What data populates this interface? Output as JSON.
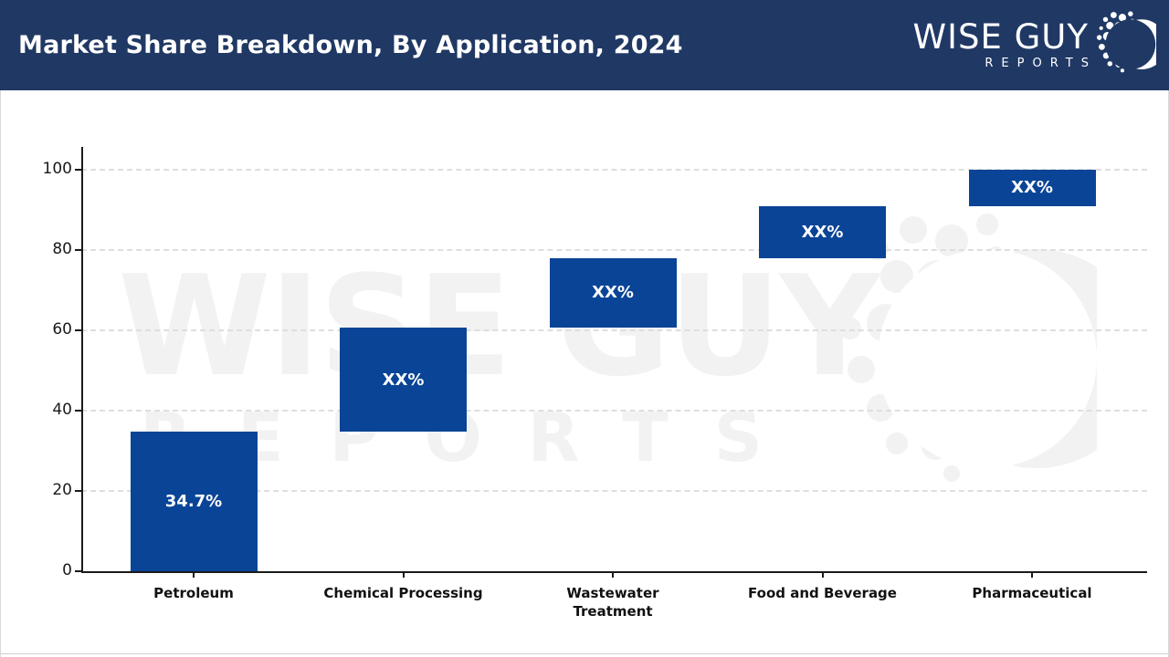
{
  "header": {
    "title": "Market Share Breakdown, By Application, 2024",
    "logo": {
      "line1": "WISE GUY",
      "line2": "REPORTS"
    }
  },
  "watermark": {
    "line1": "WISE GUY",
    "line2": "REPORTS"
  },
  "colors": {
    "header_bg": "#203864",
    "bar": "#0a4496",
    "bar_label": "#ffffff",
    "axis": "#1a1a1a",
    "grid": "#dedede",
    "watermark": "#f2f2f2"
  },
  "chart_data": {
    "type": "bar",
    "subtype": "waterfall-stacked",
    "title": "Market Share Breakdown, By Application, 2024",
    "categories": [
      "Petroleum",
      "Chemical Processing",
      "Wastewater Treatment",
      "Food and Beverage",
      "Pharmaceutical"
    ],
    "segments": [
      {
        "category": "Petroleum",
        "start": 0,
        "end": 34.7,
        "label": "34.7%"
      },
      {
        "category": "Chemical Processing",
        "start": 34.7,
        "end": 60.7,
        "label": "XX%"
      },
      {
        "category": "Wastewater Treatment",
        "start": 60.7,
        "end": 78.0,
        "label": "XX%"
      },
      {
        "category": "Food and Beverage",
        "start": 78.0,
        "end": 91.0,
        "label": "XX%"
      },
      {
        "category": "Pharmaceutical",
        "start": 91.0,
        "end": 100.0,
        "label": "XX%"
      }
    ],
    "yticks": [
      0,
      20,
      40,
      60,
      80,
      100
    ],
    "ylim": [
      0,
      105
    ],
    "xlabel": "",
    "ylabel": "",
    "grid": "dashed-horizontal",
    "legend": "none"
  }
}
